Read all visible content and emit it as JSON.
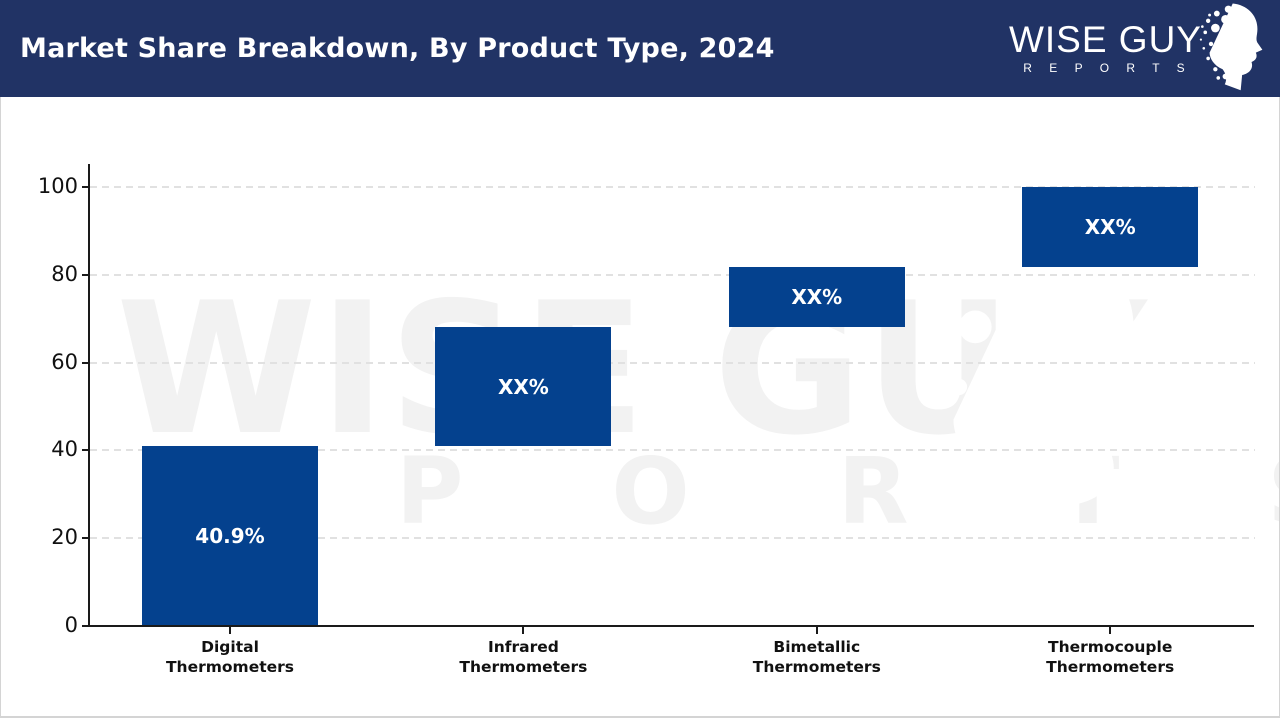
{
  "header": {
    "title": "Market Share Breakdown, By Product Type, 2024",
    "bg_color": "#213365",
    "logo_line1": "WISE GUY",
    "logo_line2": "R E P O R T S"
  },
  "watermark": {
    "line1": "WISE GUY",
    "line2": "P O R T S"
  },
  "chart_data": {
    "type": "bar",
    "subtype": "waterfall",
    "title": "Market Share Breakdown, By Product Type, 2024",
    "xlabel": "",
    "ylabel": "",
    "ylim": [
      0,
      105
    ],
    "yticks": [
      0,
      20,
      40,
      60,
      80,
      100
    ],
    "grid": {
      "axis": "y",
      "style": "dashed",
      "color": "#e1e1e1"
    },
    "bar_color": "#04418e",
    "bar_label_color": "#ffffff",
    "categories": [
      "Digital Thermometers",
      "Infrared Thermometers",
      "Bimetallic Thermometers",
      "Thermocouple Thermometers"
    ],
    "bars": [
      {
        "category": "Digital Thermometers",
        "base": 0,
        "top": 40.9,
        "label": "40.9%"
      },
      {
        "category": "Infrared Thermometers",
        "base": 40.9,
        "top": 68.2,
        "label": "XX%"
      },
      {
        "category": "Bimetallic Thermometers",
        "base": 68.2,
        "top": 81.8,
        "label": "XX%"
      },
      {
        "category": "Thermocouple Thermometers",
        "base": 81.8,
        "top": 100,
        "label": "XX%"
      }
    ]
  }
}
